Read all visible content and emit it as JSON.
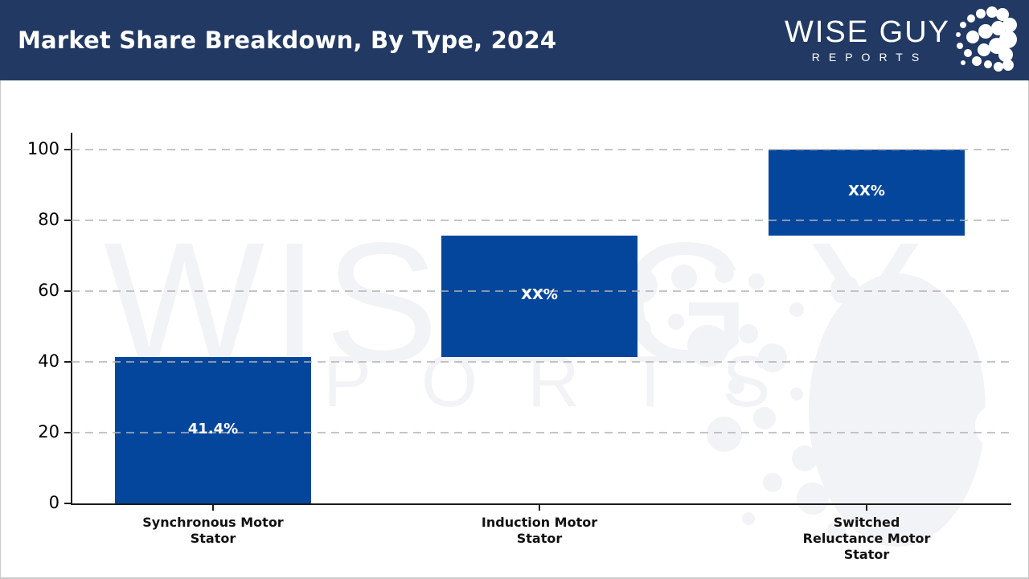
{
  "header": {
    "title": "Market Share Breakdown, By Type, 2024",
    "logo": {
      "brand_line1": "WISE GUY",
      "brand_line2": "REPORTS"
    }
  },
  "watermark": {
    "row1": "WISE G Y",
    "row2": "REPORTS"
  },
  "chart_data": {
    "type": "bar",
    "variant": "floating-segment-waterfall",
    "title": "Market Share Breakdown, By Type, 2024",
    "categories": [
      "Synchronous Motor Stator",
      "Induction Motor Stator",
      "Switched Reluctance Motor Stator"
    ],
    "category_lines": [
      [
        "Synchronous Motor",
        "Stator"
      ],
      [
        "Induction Motor",
        "Stator"
      ],
      [
        "Switched",
        "Reluctance Motor",
        "Stator"
      ]
    ],
    "segments": [
      {
        "category": "Synchronous Motor Stator",
        "start": 0,
        "end": 41.4,
        "label": "41.4%"
      },
      {
        "category": "Induction Motor Stator",
        "start": 41.4,
        "end": 75.7,
        "label": "XX%"
      },
      {
        "category": "Switched Reluctance Motor Stator",
        "start": 75.7,
        "end": 100,
        "label": "XX%"
      }
    ],
    "ylim": [
      0,
      100
    ],
    "yticks": [
      0,
      20,
      40,
      60,
      80,
      100
    ],
    "grid": "horizontal-dashed",
    "legend": "none",
    "bar_color": "#05469D"
  },
  "colors": {
    "header_bg": "#213963",
    "bar": "#05469D",
    "axis": "#1a1a1a",
    "grid_dash": "#b2b2b2",
    "watermark": "#f2f3f6",
    "bar_label_text": "#ffffff",
    "border": "#c9c9c9"
  }
}
